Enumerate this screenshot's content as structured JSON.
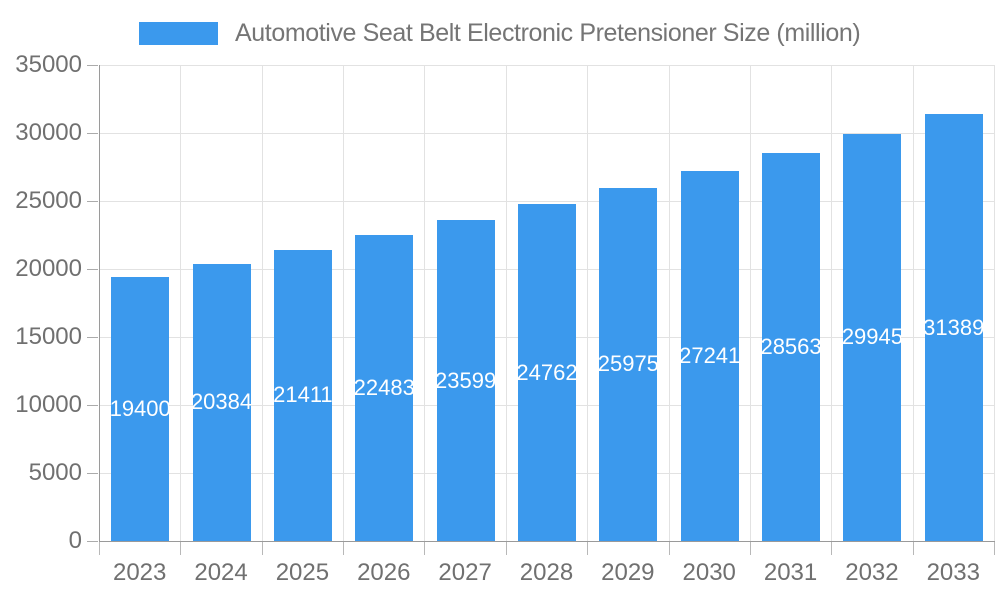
{
  "legend": {
    "label": "Automotive Seat Belt Electronic Pretensioner Size (million)",
    "swatch_color": "#3B99ED"
  },
  "chart_data": {
    "type": "bar",
    "title": "Automotive Seat Belt Electronic Pretensioner Size (million)",
    "categories": [
      "2023",
      "2024",
      "2025",
      "2026",
      "2027",
      "2028",
      "2029",
      "2030",
      "2031",
      "2032",
      "2033"
    ],
    "values": [
      19400,
      20384,
      21411,
      22483,
      23599,
      24762,
      25975,
      27241,
      28563,
      29945,
      31389
    ],
    "value_labels": [
      "19400",
      "20384",
      "21411",
      "22483",
      "23599",
      "24762",
      "25975",
      "27241",
      "28563",
      "29945",
      "31389"
    ],
    "xlabel": "",
    "ylabel": "",
    "ylim": [
      0,
      35000
    ],
    "ytick_step": 5000,
    "ytick_labels": [
      "0",
      "5000",
      "10000",
      "15000",
      "20000",
      "25000",
      "30000",
      "35000"
    ],
    "grid": true,
    "legend_position": "top",
    "colors": {
      "bar": "#3B99ED",
      "bar_value_text": "#ffffff",
      "axis_text": "#707070",
      "title_text": "#757575",
      "grid_line": "#e2e2e2",
      "axis_line": "#9a9a9a"
    }
  }
}
